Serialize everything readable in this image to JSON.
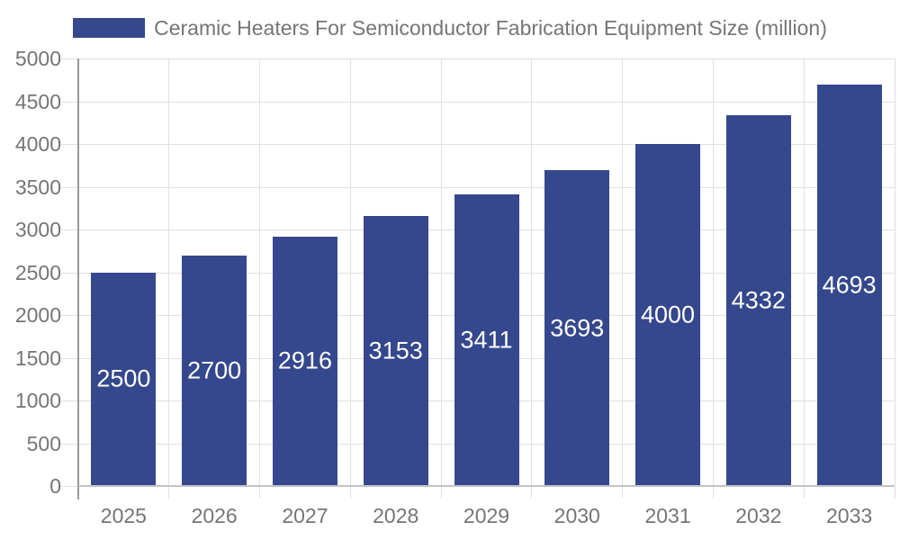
{
  "chart_data": {
    "type": "bar",
    "title": "Ceramic Heaters For Semiconductor Fabrication Equipment Size (million)",
    "legend": {
      "label": "Ceramic Heaters For Semiconductor Fabrication Equipment Size (million)",
      "position": "top-center"
    },
    "categories": [
      "2025",
      "2026",
      "2027",
      "2028",
      "2029",
      "2030",
      "2031",
      "2032",
      "2033"
    ],
    "values": [
      2500,
      2700,
      2916,
      3153,
      3411,
      3693,
      4000,
      4332,
      4693
    ],
    "xlabel": "",
    "ylabel": "",
    "ylim": [
      0,
      5000
    ],
    "yticks": [
      0,
      500,
      1000,
      1500,
      2000,
      2500,
      3000,
      3500,
      4000,
      4500,
      5000
    ],
    "grid": "horizontal-and-vertical",
    "bar_value_labels": "centered-inside-bars",
    "colors": {
      "bar": "#35488D",
      "bar_label": "#ffffff",
      "axis_text": "#757575",
      "grid": "#e0e0e0",
      "y_axis_line": "#999999",
      "x_axis_line": "#c2c2c2",
      "background": "#ffffff"
    }
  }
}
